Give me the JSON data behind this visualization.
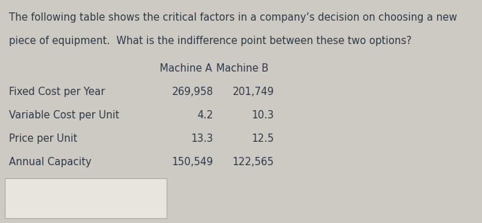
{
  "intro_text_line1": "The following table shows the critical factors in a company’s decision on choosing a new",
  "intro_text_line2": "piece of equipment.  What is the indifference point between these two options?",
  "header_col2": "Machine A",
  "header_col3": "Machine B",
  "rows": [
    {
      "label": "Fixed Cost per Year",
      "val_a": "269,958",
      "val_b": "201,749"
    },
    {
      "label": "Variable Cost per Unit",
      "val_a": "4.2",
      "val_b": "10.3"
    },
    {
      "label": "Price per Unit",
      "val_a": "13.3",
      "val_b": "12.5"
    },
    {
      "label": "Annual Capacity",
      "val_a": "150,549",
      "val_b": "122,565"
    }
  ],
  "bg_color": "#cdc9c3",
  "text_color": "#2e3a4a",
  "input_box_color": "#e8e4de",
  "input_box_edge": "#b0aba4",
  "font_size": 10.5
}
